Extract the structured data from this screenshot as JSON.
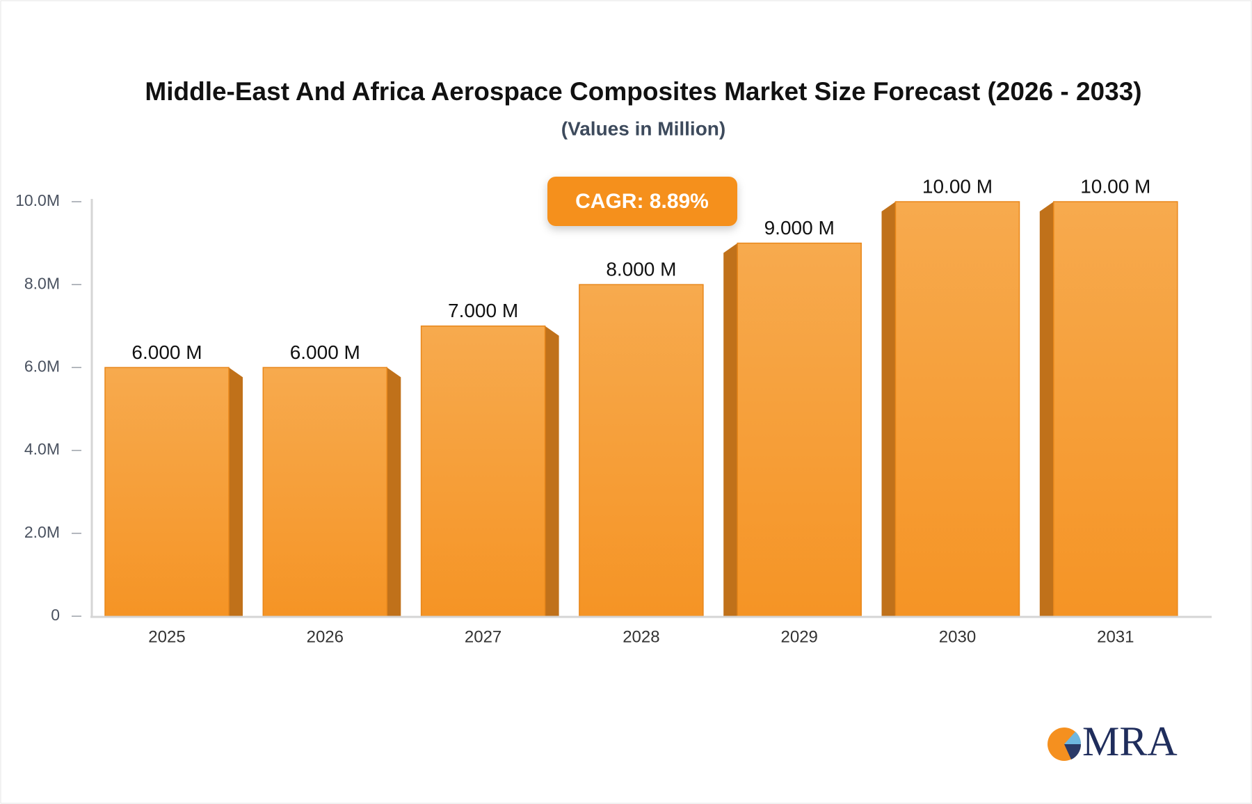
{
  "chart_data": {
    "type": "bar",
    "title": "Middle-East And Africa Aerospace Composites Market Size Forecast (2026 - 2033)",
    "subtitle": "(Values in Million)",
    "annotation": "CAGR: 8.89%",
    "logo": "MRA",
    "categories": [
      "2025",
      "2026",
      "2027",
      "2028",
      "2029",
      "2030",
      "2031"
    ],
    "values": [
      6,
      6,
      7,
      8,
      9,
      10,
      10
    ],
    "value_labels": [
      "6.000 M",
      "6.000 M",
      "7.000 M",
      "8.000 M",
      "9.000 M",
      "10.00 M",
      "10.00 M"
    ],
    "color": "#f6a03e",
    "ylim": [
      0,
      10
    ],
    "yticks": [
      0,
      {
        "value": 2,
        "label": "2.0M"
      },
      {
        "value": 4,
        "label": "4.0M"
      },
      {
        "value": 6,
        "label": "6.0M"
      },
      {
        "value": 8,
        "label": "8.0M"
      },
      {
        "value": 10,
        "label": "10.0M"
      }
    ],
    "grid": false
  }
}
